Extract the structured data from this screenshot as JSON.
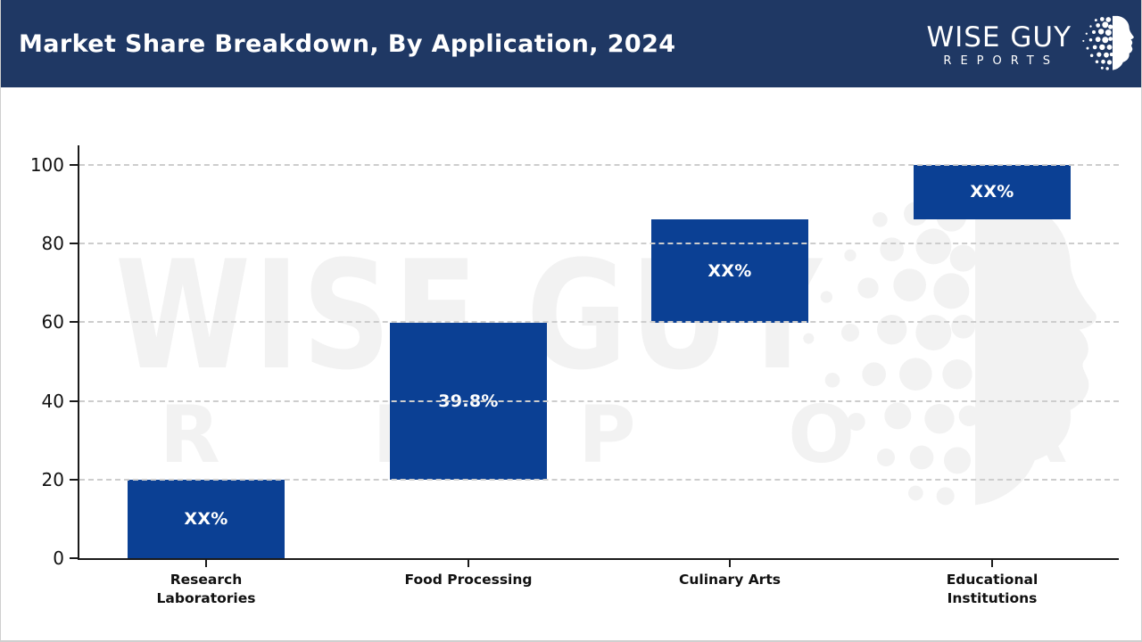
{
  "header": {
    "title": "Market Share Breakdown, By Application, 2024",
    "logo_line1": "WISE GUY",
    "logo_line2": "REPORTS"
  },
  "watermark": {
    "line1": "WISE GUY",
    "line2": "R E P O R T S"
  },
  "colors": {
    "header_bg": "#1f3864",
    "bar": "#0b4094",
    "bar_label": "#ffffff",
    "axis": "#1a1a1a",
    "gridline": "#cdcdcd",
    "watermark": "#f2f2f2"
  },
  "chart_data": {
    "type": "bar",
    "subtype": "waterfall",
    "title": "Market Share Breakdown, By Application, 2024",
    "categories": [
      "Research Laboratories",
      "Food Processing",
      "Culinary Arts",
      "Educational Institutions"
    ],
    "category_lines": [
      [
        "Research",
        "Laboratories"
      ],
      [
        "Food Processing"
      ],
      [
        "Culinary Arts"
      ],
      [
        "Educational",
        "Institutions"
      ]
    ],
    "series": [
      {
        "name": "Market Share (%)",
        "segments": [
          {
            "category": "Research Laboratories",
            "start": 0,
            "end": 20,
            "label": "XX%"
          },
          {
            "category": "Food Processing",
            "start": 20,
            "end": 59.8,
            "label": "39.8%"
          },
          {
            "category": "Culinary Arts",
            "start": 59.8,
            "end": 86.2,
            "label": "XX%"
          },
          {
            "category": "Educational Institutions",
            "start": 86.2,
            "end": 100,
            "label": "XX%"
          }
        ]
      }
    ],
    "yticks": [
      0,
      20,
      40,
      60,
      80,
      100
    ],
    "ylim": [
      0,
      105
    ],
    "xlabel": "",
    "ylabel": "",
    "grid": "horizontal-dashed",
    "legend": "none"
  }
}
